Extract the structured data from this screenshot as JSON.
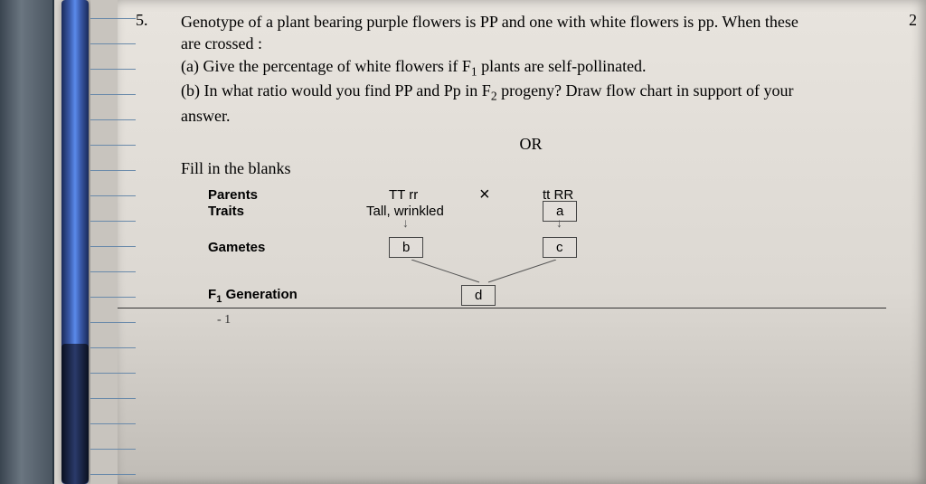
{
  "question": {
    "number": "5.",
    "marks": "2",
    "stem_line1": "Genotype of a plant bearing purple flowers is PP and one with white flowers is pp. When these",
    "stem_line2": "are crossed :",
    "part_a": "(a) Give the percentage of white flowers if F",
    "part_a_sub": "1",
    "part_a_cont": " plants are self-pollinated.",
    "part_b": "(b) In what ratio would you find PP and Pp in F",
    "part_b_sub": "2",
    "part_b_cont": " progeny? Draw flow chart in support of your",
    "part_b_line2": "answer.",
    "or": "OR",
    "fill": "Fill in the blanks"
  },
  "diagram": {
    "row_parents_label": "Parents",
    "row_traits_label": "Traits",
    "row_gametes_label": "Gametes",
    "row_f1_label_pre": "F",
    "row_f1_label_sub": "1",
    "row_f1_label_post": " Generation",
    "p1_geno": "TT rr",
    "p1_trait": "Tall, wrinkled",
    "cross": "×",
    "p2_geno": "tt RR",
    "box_a": "a",
    "box_b": "b",
    "box_c": "c",
    "box_d": "d"
  },
  "misc": {
    "tick": "- 1"
  },
  "colors": {
    "page_bg": "#e8e4de",
    "text": "#000000",
    "box_border": "#444444",
    "pen": "#3a5aaa"
  }
}
